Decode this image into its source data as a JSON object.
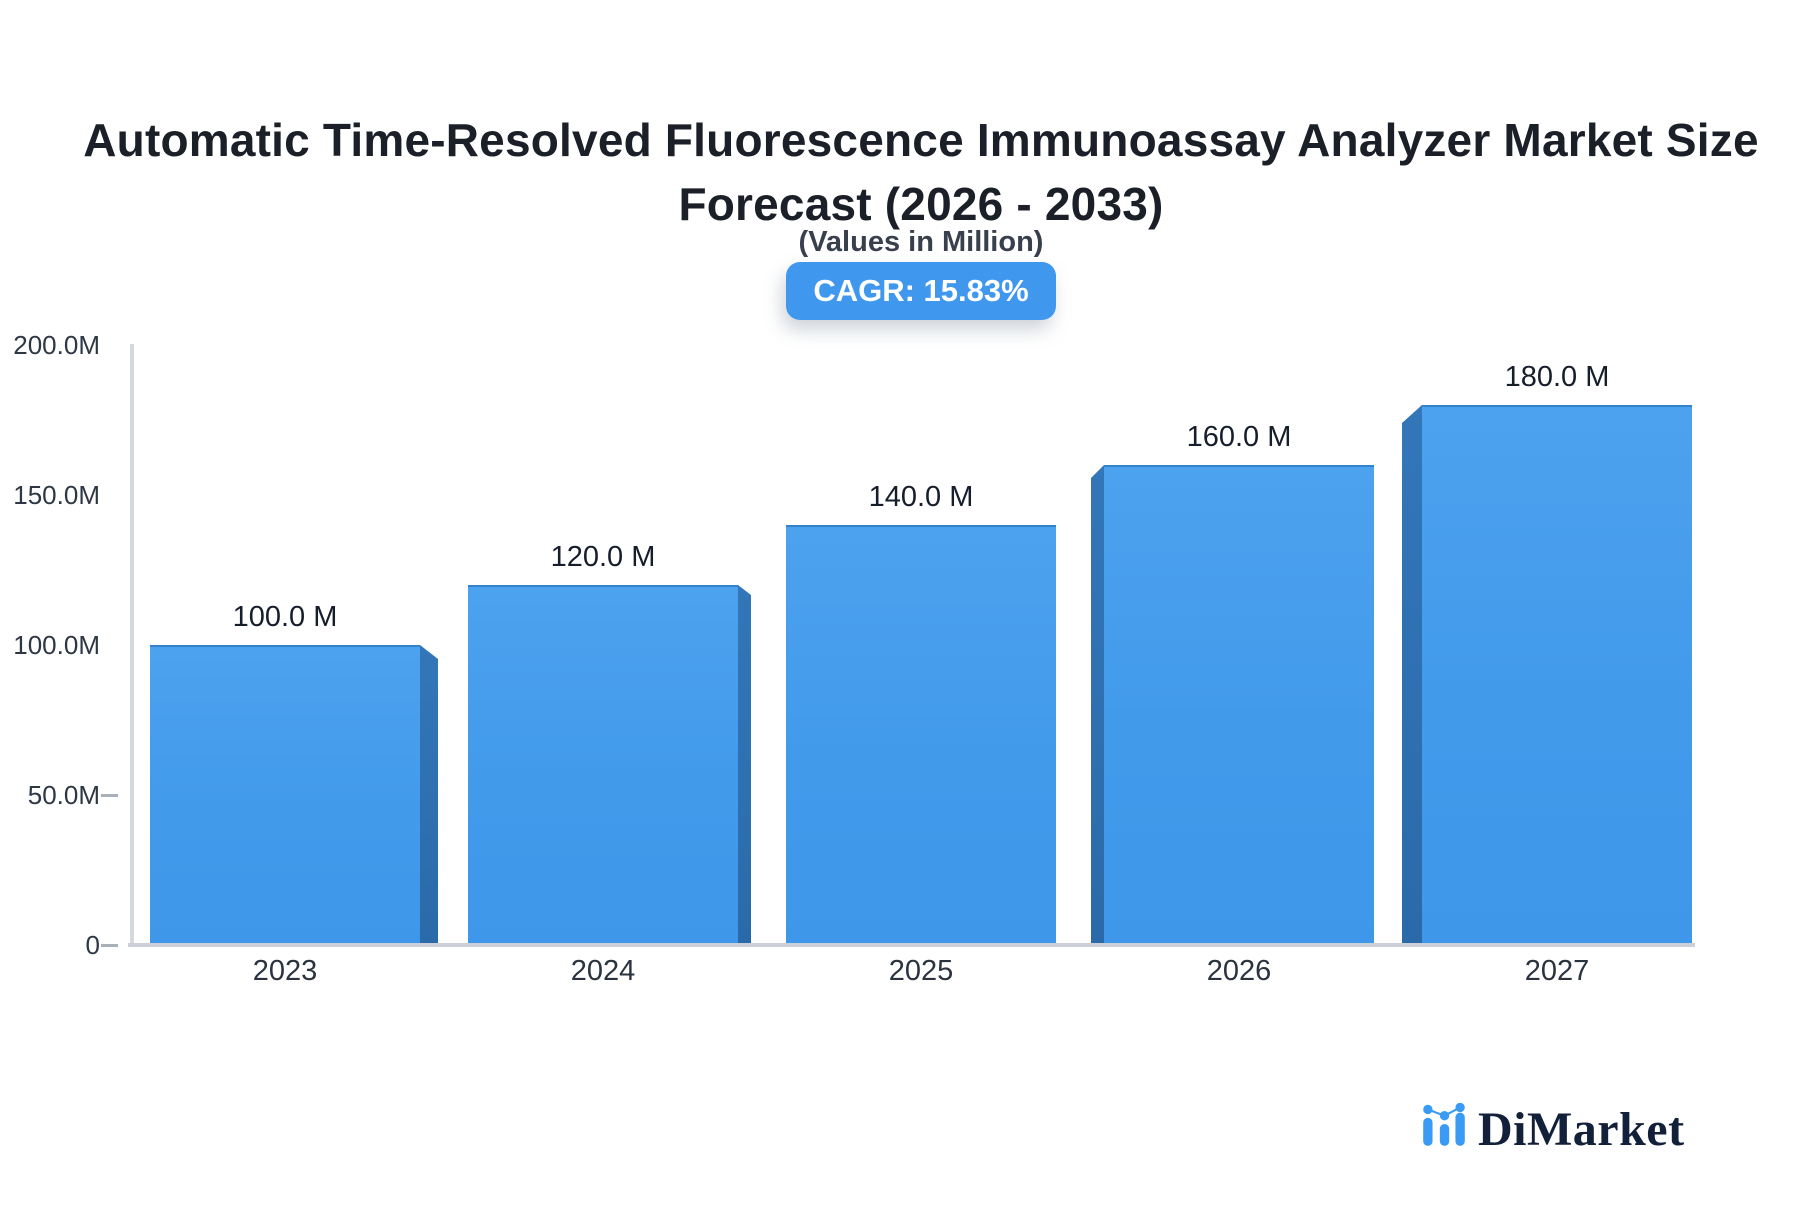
{
  "header": {
    "title_line1": "Automatic Time-Resolved Fluorescence Immunoassay Analyzer Market Size",
    "title_line2": "Forecast (2026 - 2033)",
    "subtitle": "(Values in Million)",
    "cagr_badge": "CAGR: 15.83%"
  },
  "logo": {
    "brand": "DiMarket",
    "icon": "bar-chart-logo-icon"
  },
  "colors": {
    "bar_front": "#429aeb",
    "bar_side": "#2d6fad",
    "badge_bg": "#3f97ee",
    "badge_text": "#ffffff",
    "axis_gray": "#cdd1d8",
    "title_text": "#1b1f27",
    "brand_navy": "#13203a",
    "brand_blue": "#3a9bf5"
  },
  "chart_data": {
    "type": "bar",
    "title": "Automatic Time-Resolved Fluorescence Immunoassay Analyzer Market Size Forecast (2026 - 2033)",
    "subtitle": "(Values in Million)",
    "cagr_percent": 15.83,
    "categories": [
      "2023",
      "2024",
      "2025",
      "2026",
      "2027"
    ],
    "values": [
      100,
      120,
      140,
      160,
      180
    ],
    "bar_labels": [
      "100.0 M",
      "120.0 M",
      "140.0 M",
      "160.0 M",
      "180.0 M"
    ],
    "unit": "Million",
    "ylim": [
      0,
      200
    ],
    "yticks": [
      {
        "value": 200,
        "label": "200.0M",
        "dash": false
      },
      {
        "value": 150,
        "label": "150.0M",
        "dash": false
      },
      {
        "value": 100,
        "label": "100.0M",
        "dash": false
      },
      {
        "value": 50,
        "label": "50.0M",
        "dash": true
      },
      {
        "value": 0,
        "label": "0",
        "dash": true
      }
    ],
    "grid": false,
    "legend": false,
    "bar_style": "3d-perspective"
  }
}
